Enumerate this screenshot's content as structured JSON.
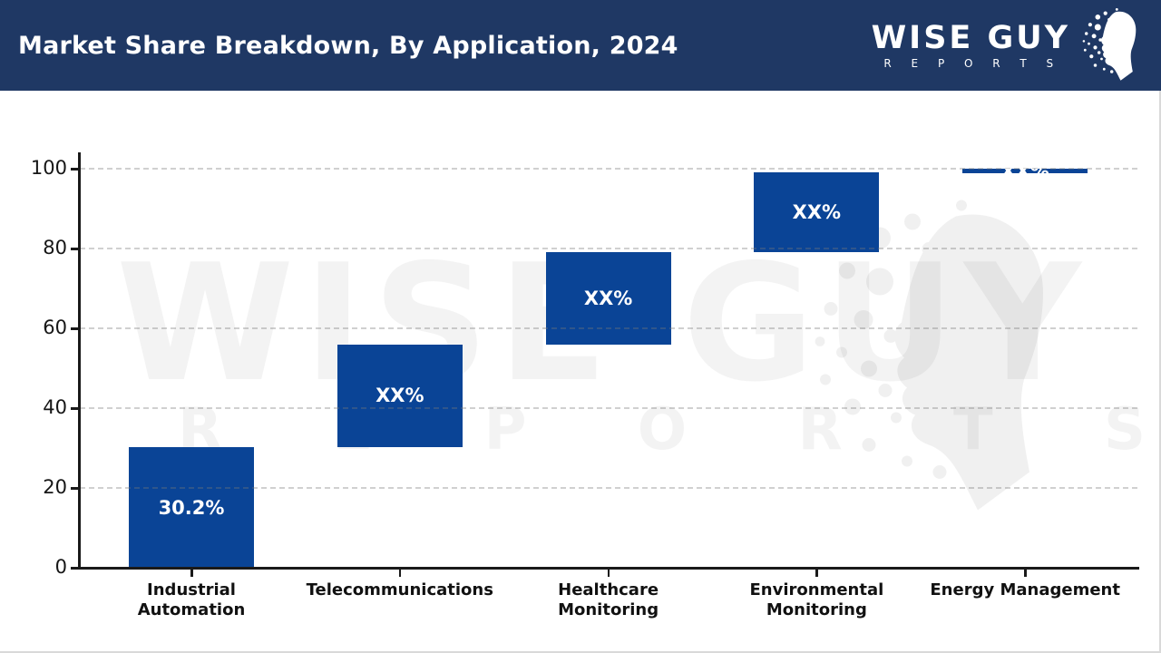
{
  "header": {
    "title": "Market Share Breakdown, By Application, 2024",
    "logo": {
      "line1": "WISE GUY",
      "line2": "R E P O R T S"
    }
  },
  "watermark": {
    "line1": "WISE GUY",
    "line2": "R E P O R T S"
  },
  "chart_data": {
    "type": "bar",
    "subtype": "waterfall",
    "title": "Market Share Breakdown, By Application, 2024",
    "categories": [
      "Industrial Automation",
      "Telecommunications",
      "Healthcare Monitoring",
      "Environmental Monitoring",
      "Energy Management"
    ],
    "category_lines": [
      [
        "Industrial",
        "Automation"
      ],
      [
        "Telecommunications"
      ],
      [
        "Healthcare",
        "Monitoring"
      ],
      [
        "Environmental",
        "Monitoring"
      ],
      [
        "Energy Management"
      ]
    ],
    "series": [
      {
        "name": "Industrial Automation",
        "start": 0,
        "end": 30.2,
        "label": "30.2%"
      },
      {
        "name": "Telecommunications",
        "start": 30.2,
        "end": 56,
        "label": "XX%"
      },
      {
        "name": "Healthcare Monitoring",
        "start": 56,
        "end": 79,
        "label": "XX%"
      },
      {
        "name": "Environmental Monitoring",
        "start": 79,
        "end": 99,
        "label": "XX%"
      },
      {
        "name": "Energy Management",
        "start": 98.8,
        "end": 100,
        "label": "XX%",
        "label_clipped": true
      }
    ],
    "ylim": [
      0,
      100
    ],
    "yticks": [
      0,
      20,
      40,
      60,
      80,
      100
    ],
    "grid": "horizontal-dashed",
    "legend": null,
    "bar_color": "#0a4496",
    "bar_label_color": "#ffffff",
    "axis_color": "#1a1a1a",
    "header_color": "#1f3864"
  }
}
